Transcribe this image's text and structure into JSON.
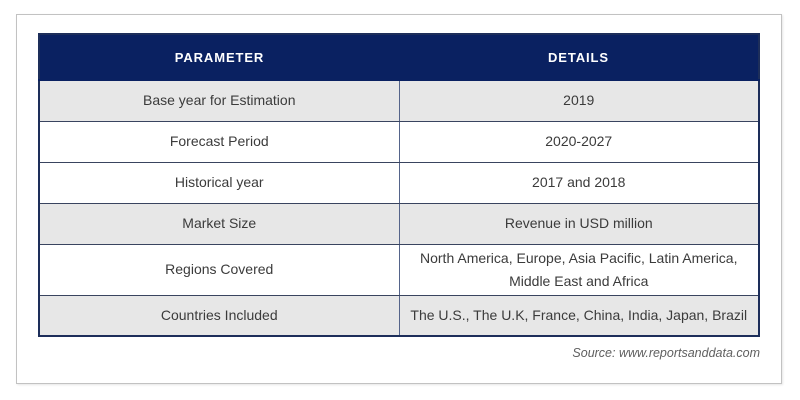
{
  "colors": {
    "header_bg": "#0a2161",
    "header_text": "#ffffff",
    "row_shaded": "#e7e7e7",
    "row_plain": "#ffffff",
    "border_h": "#39445f",
    "border_v": "#55648a",
    "outer_border": "#1d2e5a",
    "text": "#3b3b3b",
    "source_text": "#5f5f5f",
    "card_border": "#c2c2c2"
  },
  "table": {
    "header": {
      "parameter": "PARAMETER",
      "details": "DETAILS"
    },
    "rows": [
      {
        "parameter": "Base year for Estimation",
        "details": "2019",
        "shaded": true
      },
      {
        "parameter": "Forecast Period",
        "details": "2020-2027",
        "shaded": false
      },
      {
        "parameter": "Historical year",
        "details": "2017 and 2018",
        "shaded": false
      },
      {
        "parameter": "Market Size",
        "details": "Revenue in USD million",
        "shaded": true
      },
      {
        "parameter": "Regions Covered",
        "details": "North America, Europe, Asia Pacific, Latin America, Middle East and Africa",
        "shaded": false
      },
      {
        "parameter": "Countries Included",
        "details": "The U.S., The  U.K, France, China, India, Japan, Brazil",
        "shaded": true
      }
    ]
  },
  "source": {
    "text": "Source: www.reportsanddata.com"
  },
  "chart_data": {
    "type": "table",
    "title": "",
    "columns": [
      "PARAMETER",
      "DETAILS"
    ],
    "rows": [
      [
        "Base year for Estimation",
        "2019"
      ],
      [
        "Forecast Period",
        "2020-2027"
      ],
      [
        "Historical year",
        "2017 and 2018"
      ],
      [
        "Market Size",
        "Revenue in USD million"
      ],
      [
        "Regions Covered",
        "North America, Europe, Asia Pacific, Latin America, Middle East and Africa"
      ],
      [
        "Countries Included",
        "The U.S., The  U.K, France, China, India, Japan, Brazil"
      ]
    ]
  }
}
